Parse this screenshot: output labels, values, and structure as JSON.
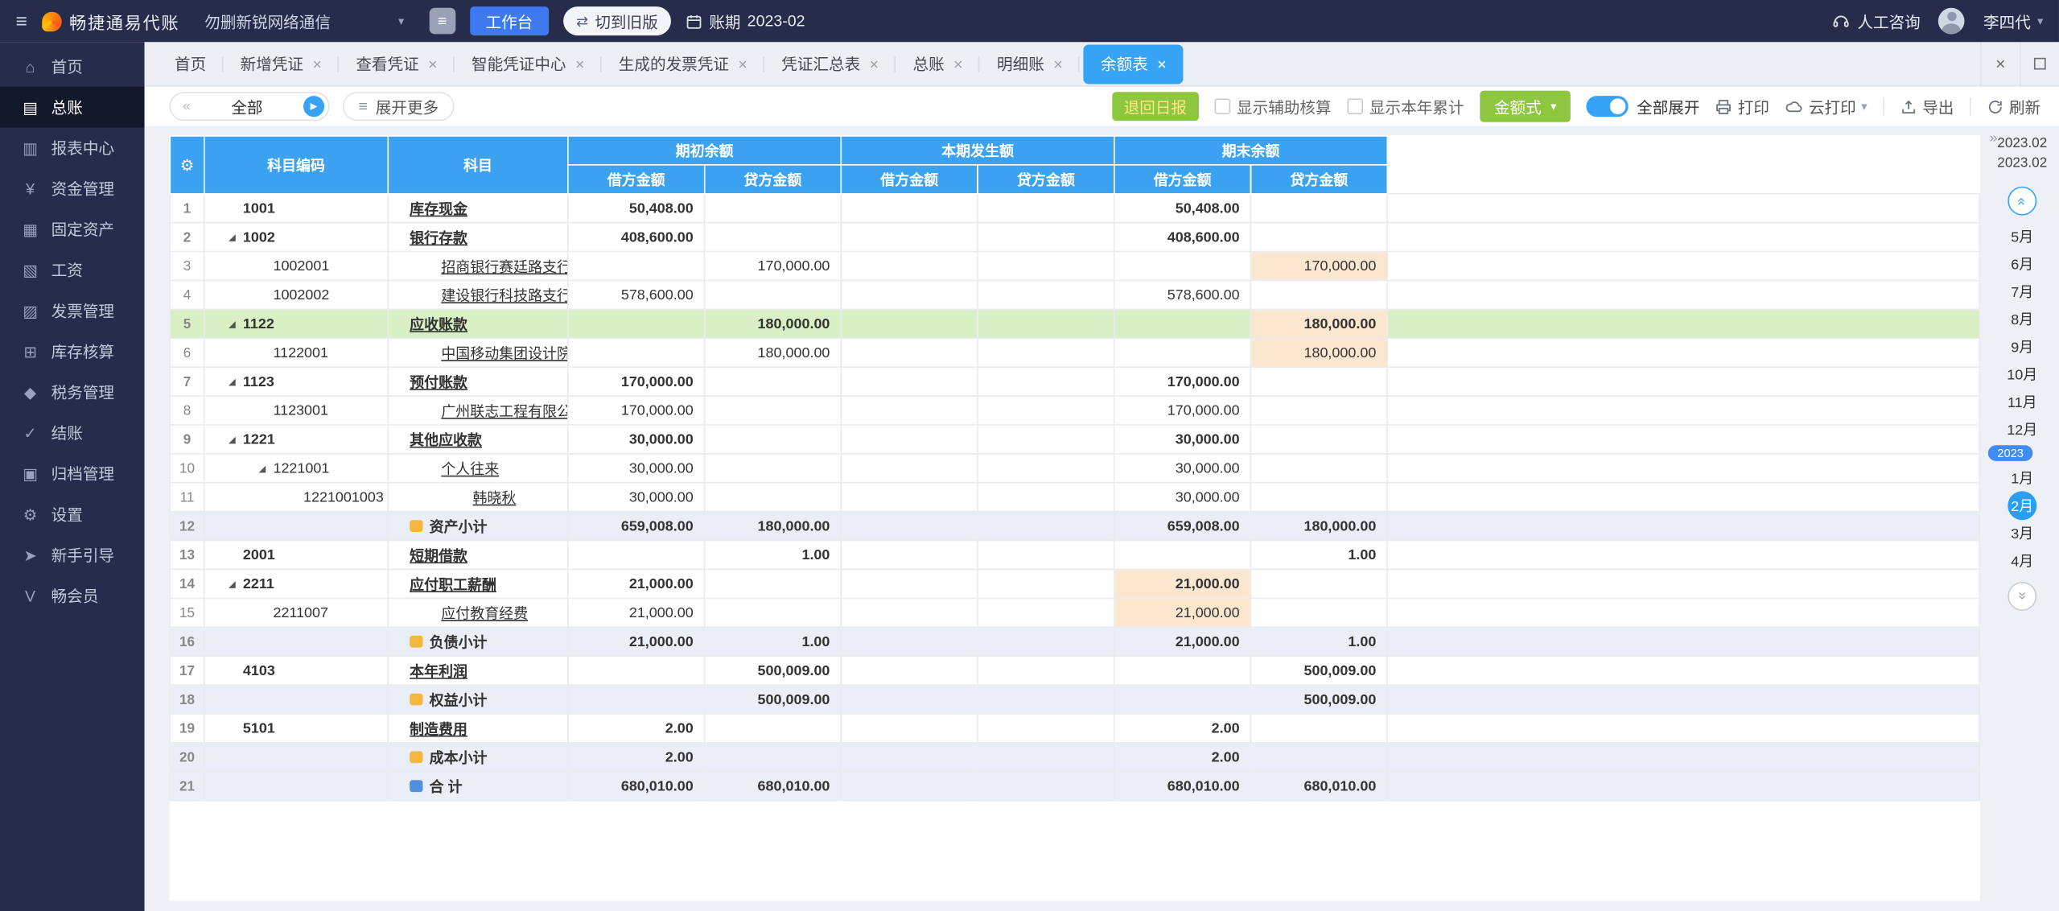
{
  "colors": {
    "accent_blue": "#36a3f7",
    "accent_green": "#8dc63f",
    "header_navy": "#262c4a",
    "table_header_blue": "#3aa2f0",
    "row_highlight_green": "#d9f0c4",
    "cell_highlight_orange": "#fbe7cf"
  },
  "header": {
    "logo_text": "畅捷通易代账",
    "company": "勿删新锐网络通信",
    "workbench": "工作台",
    "switch_old": "切到旧版",
    "period_label": "账期",
    "period_value": "2023-02",
    "support": "人工咨询",
    "user": "李四代"
  },
  "tabs": {
    "items": [
      {
        "label": "首页",
        "closable": false
      },
      {
        "label": "新增凭证",
        "closable": true
      },
      {
        "label": "查看凭证",
        "closable": true
      },
      {
        "label": "智能凭证中心",
        "closable": true
      },
      {
        "label": "生成的发票凭证",
        "closable": true
      },
      {
        "label": "凭证汇总表",
        "closable": true
      },
      {
        "label": "总账",
        "closable": true
      },
      {
        "label": "明细账",
        "closable": true
      },
      {
        "label": "余额表",
        "closable": true,
        "active": true
      }
    ]
  },
  "sidebar": {
    "items": [
      {
        "key": "home",
        "label": "首页",
        "icon": "home-icon",
        "glyph": "⌂"
      },
      {
        "key": "ledger",
        "label": "总账",
        "icon": "ledger-icon",
        "glyph": "▤",
        "active": true
      },
      {
        "key": "report-center",
        "label": "报表中心",
        "icon": "report-chart-icon",
        "glyph": "▥"
      },
      {
        "key": "funds",
        "label": "资金管理",
        "icon": "funds-icon",
        "glyph": "¥"
      },
      {
        "key": "fixed-assets",
        "label": "固定资产",
        "icon": "fixed-assets-icon",
        "glyph": "▦"
      },
      {
        "key": "payroll",
        "label": "工资",
        "icon": "salary-icon",
        "glyph": "▧"
      },
      {
        "key": "invoice",
        "label": "发票管理",
        "icon": "invoice-icon",
        "glyph": "▨"
      },
      {
        "key": "inventory",
        "label": "库存核算",
        "icon": "inventory-icon",
        "glyph": "⊞"
      },
      {
        "key": "tax",
        "label": "税务管理",
        "icon": "tax-icon",
        "glyph": "◆"
      },
      {
        "key": "closing",
        "label": "结账",
        "icon": "closing-check-icon",
        "glyph": "✓"
      },
      {
        "key": "archive",
        "label": "归档管理",
        "icon": "archive-icon",
        "glyph": "▣"
      },
      {
        "key": "settings",
        "label": "设置",
        "icon": "gear-icon",
        "glyph": "⚙"
      },
      {
        "key": "guide",
        "label": "新手引导",
        "icon": "guide-icon",
        "glyph": "➤"
      },
      {
        "key": "vip",
        "label": "畅会员",
        "icon": "membership-icon",
        "glyph": "V"
      }
    ]
  },
  "toolbar": {
    "filter_value": "全部",
    "expand_more": "展开更多",
    "return_daily": "退回日报",
    "checkbox_auxiliary": "显示辅助核算",
    "checkbox_year_total": "显示本年累计",
    "amount_format": "金额式",
    "toggle_expand_all": "全部展开",
    "print": "打印",
    "cloud_print": "云打印",
    "export": "导出",
    "refresh": "刷新"
  },
  "table": {
    "columns": {
      "code": "科目编码",
      "subject": "科目",
      "opening": "期初余额",
      "current": "本期发生额",
      "ending": "期末余额",
      "debit": "借方金额",
      "credit": "贷方金额"
    },
    "rows": [
      {
        "n": 1,
        "code": "1001",
        "lvl": 0,
        "exp": false,
        "name": "库存现金",
        "link": true,
        "bold": true,
        "od": "50,408.00",
        "ed": "50,408.00"
      },
      {
        "n": 2,
        "code": "1002",
        "lvl": 0,
        "exp": true,
        "name": "银行存款",
        "link": true,
        "bold": true,
        "od": "408,600.00",
        "ed": "408,600.00"
      },
      {
        "n": 3,
        "code": "1002001",
        "lvl": 1,
        "exp": false,
        "name": "招商银行赛廷路支行",
        "link": true,
        "bold": false,
        "oc": "170,000.00",
        "ec": "170,000.00",
        "hl": [
          "ec"
        ]
      },
      {
        "n": 4,
        "code": "1002002",
        "lvl": 1,
        "exp": false,
        "name": "建设银行科技路支行",
        "link": true,
        "bold": false,
        "od": "578,600.00",
        "ed": "578,600.00"
      },
      {
        "n": 5,
        "code": "1122",
        "lvl": 0,
        "exp": true,
        "name": "应收账款",
        "link": true,
        "bold": true,
        "oc": "180,000.00",
        "ec": "180,000.00",
        "hl": [
          "ec"
        ],
        "bg": "green"
      },
      {
        "n": 6,
        "code": "1122001",
        "lvl": 1,
        "exp": false,
        "name": "中国移动集团设计院有限公司划",
        "link": true,
        "bold": false,
        "oc": "180,000.00",
        "ec": "180,000.00",
        "hl": [
          "ec"
        ]
      },
      {
        "n": 7,
        "code": "1123",
        "lvl": 0,
        "exp": true,
        "name": "预付账款",
        "link": true,
        "bold": true,
        "od": "170,000.00",
        "ed": "170,000.00"
      },
      {
        "n": 8,
        "code": "1123001",
        "lvl": 1,
        "exp": false,
        "name": "广州联志工程有限公司",
        "link": true,
        "bold": false,
        "od": "170,000.00",
        "ed": "170,000.00"
      },
      {
        "n": 9,
        "code": "1221",
        "lvl": 0,
        "exp": true,
        "name": "其他应收款",
        "link": true,
        "bold": true,
        "od": "30,000.00",
        "ed": "30,000.00"
      },
      {
        "n": 10,
        "code": "1221001",
        "lvl": 1,
        "exp": true,
        "name": "个人往来",
        "link": true,
        "bold": false,
        "od": "30,000.00",
        "ed": "30,000.00"
      },
      {
        "n": 11,
        "code": "1221001003",
        "lvl": 2,
        "exp": false,
        "name": "韩晓秋",
        "link": true,
        "bold": false,
        "od": "30,000.00",
        "ed": "30,000.00"
      },
      {
        "n": 12,
        "code": "",
        "lvl": 0,
        "exp": false,
        "name": "资产小计",
        "icon": "#f5b73f",
        "sub": true,
        "bold": true,
        "od": "659,008.00",
        "oc": "180,000.00",
        "ed": "659,008.00",
        "ec": "180,000.00"
      },
      {
        "n": 13,
        "code": "2001",
        "lvl": 0,
        "exp": false,
        "name": "短期借款",
        "link": true,
        "bold": true,
        "oc": "1.00",
        "ec": "1.00"
      },
      {
        "n": 14,
        "code": "2211",
        "lvl": 0,
        "exp": true,
        "name": "应付职工薪酬",
        "link": true,
        "bold": true,
        "od": "21,000.00",
        "ed": "21,000.00",
        "hl": [
          "ed"
        ]
      },
      {
        "n": 15,
        "code": "2211007",
        "lvl": 1,
        "exp": false,
        "name": "应付教育经费",
        "link": true,
        "bold": false,
        "od": "21,000.00",
        "ed": "21,000.00",
        "hl": [
          "ed"
        ]
      },
      {
        "n": 16,
        "code": "",
        "lvl": 0,
        "exp": false,
        "name": "负债小计",
        "icon": "#f5b73f",
        "sub": true,
        "bold": true,
        "od": "21,000.00",
        "oc": "1.00",
        "ed": "21,000.00",
        "ec": "1.00"
      },
      {
        "n": 17,
        "code": "4103",
        "lvl": 0,
        "exp": false,
        "name": "本年利润",
        "link": true,
        "bold": true,
        "oc": "500,009.00",
        "ec": "500,009.00"
      },
      {
        "n": 18,
        "code": "",
        "lvl": 0,
        "exp": false,
        "name": "权益小计",
        "icon": "#f5b73f",
        "sub": true,
        "bold": true,
        "oc": "500,009.00",
        "ec": "500,009.00"
      },
      {
        "n": 19,
        "code": "5101",
        "lvl": 0,
        "exp": false,
        "name": "制造费用",
        "link": true,
        "bold": true,
        "od": "2.00",
        "ed": "2.00"
      },
      {
        "n": 20,
        "code": "",
        "lvl": 0,
        "exp": false,
        "name": "成本小计",
        "icon": "#f5b73f",
        "sub": true,
        "bold": true,
        "od": "2.00",
        "ed": "2.00"
      },
      {
        "n": 21,
        "code": "",
        "lvl": 0,
        "exp": false,
        "name": "合  计",
        "icon": "#4f8fde",
        "sub": true,
        "bold": true,
        "od": "680,010.00",
        "oc": "680,010.00",
        "ed": "680,010.00",
        "ec": "680,010.00"
      }
    ]
  },
  "month_rail": {
    "period_line1": "2023.02",
    "period_line2": "2023.02",
    "months_prev": [
      "5月",
      "6月",
      "7月",
      "8月",
      "9月",
      "10月",
      "11月",
      "12月"
    ],
    "year_badge": "2023",
    "months_next": [
      "1月",
      "2月",
      "3月",
      "4月"
    ],
    "active_month": "2月"
  }
}
